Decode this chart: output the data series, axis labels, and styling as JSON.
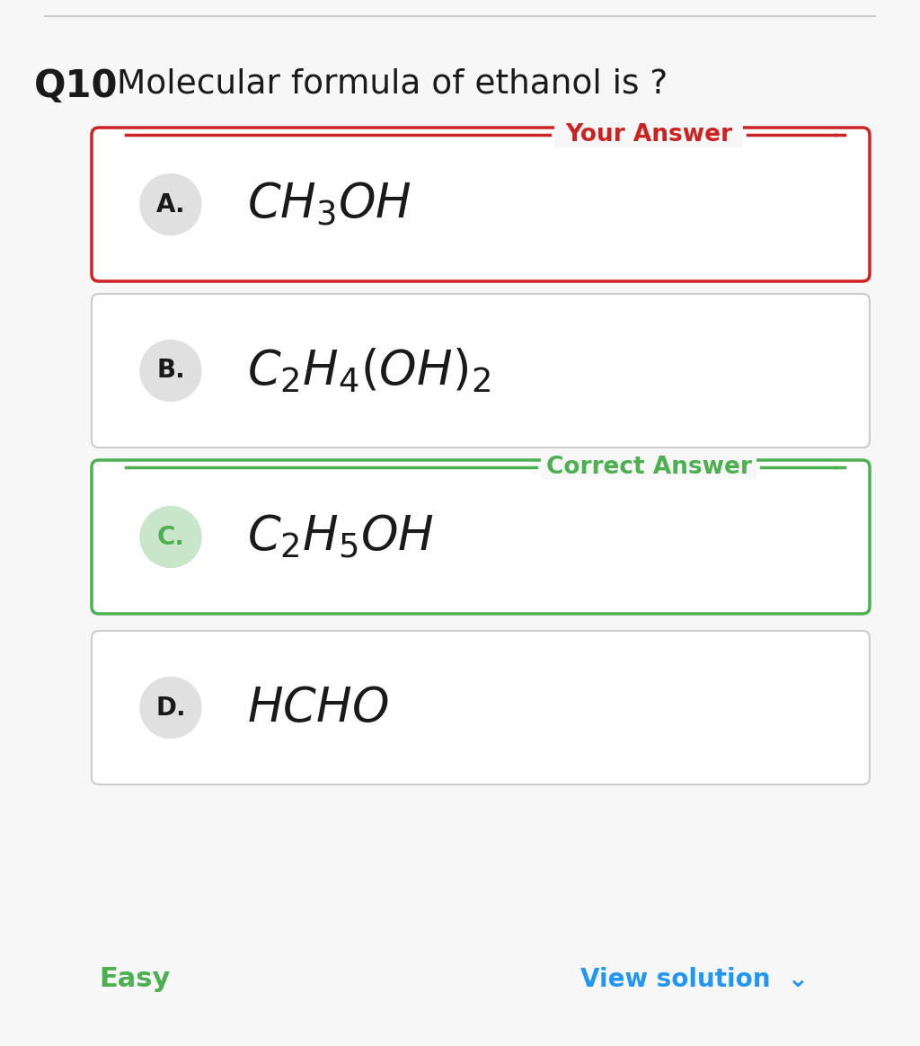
{
  "bg_color": "#f7f7f7",
  "question_number": "Q10",
  "question_text": "Molecular formula of ethanol is ?",
  "question_color": "#1a1a1a",
  "question_fontsize": 30,
  "options": [
    {
      "letter": "A",
      "formula_display": "$\\mathit{CH_3OH}$",
      "border_color": "#cc2222",
      "border_width": 2.5,
      "label": "Your Answer",
      "label_color": "#cc2222",
      "letter_bg": "#e0e0e0",
      "letter_color": "#1a1a1a",
      "letter_fontcolor": "#1a1a1a"
    },
    {
      "letter": "B",
      "formula_display": "$\\mathit{C_2H_4(OH)_2}$",
      "border_color": "#cccccc",
      "border_width": 1.5,
      "label": "",
      "label_color": "",
      "letter_bg": "#e0e0e0",
      "letter_color": "#1a1a1a",
      "letter_fontcolor": "#1a1a1a"
    },
    {
      "letter": "C",
      "formula_display": "$\\mathit{C_2H_5OH}$",
      "border_color": "#4caf50",
      "border_width": 2.5,
      "label": "Correct Answer",
      "label_color": "#4caf50",
      "letter_bg": "#c8e6c9",
      "letter_color": "#4caf50",
      "letter_fontcolor": "#4caf50"
    },
    {
      "letter": "D",
      "formula_display": "$\\mathit{HCHO}$",
      "border_color": "#cccccc",
      "border_width": 1.5,
      "label": "",
      "label_color": "",
      "letter_bg": "#e0e0e0",
      "letter_color": "#1a1a1a",
      "letter_fontcolor": "#1a1a1a"
    }
  ],
  "footer_difficulty": "Easy",
  "footer_difficulty_color": "#4caf50",
  "footer_solution_color": "#2196F3",
  "footer_fontsize": 22,
  "card_bg": "#ffffff",
  "top_line_color": "#cccccc"
}
